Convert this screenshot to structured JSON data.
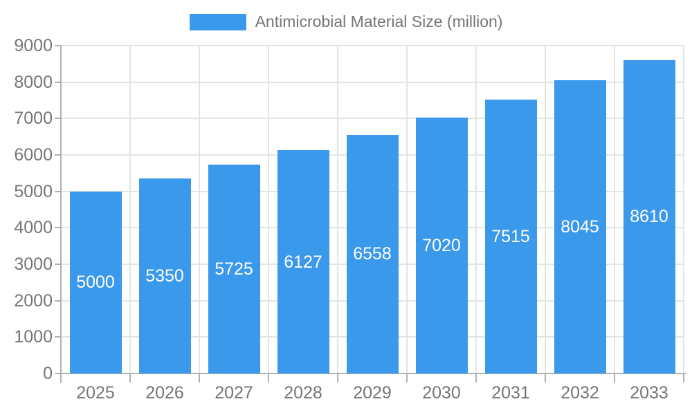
{
  "legend": {
    "label": "Antimicrobial Material Size (million)"
  },
  "colors": {
    "bar": "#3B99EC",
    "bar_label": "#FFFFFF",
    "grid": "#E4E4E4",
    "axis": "#B0B0B0",
    "tick_label": "#757575",
    "legend_text": "#757575",
    "background": "#FFFFFF"
  },
  "chart_data": {
    "type": "bar",
    "title": "Antimicrobial Material Size (million)",
    "categories": [
      "2025",
      "2026",
      "2027",
      "2028",
      "2029",
      "2030",
      "2031",
      "2032",
      "2033"
    ],
    "values": [
      5000,
      5350,
      5725,
      6127,
      6558,
      7020,
      7515,
      8045,
      8610
    ],
    "bar_value_labels": [
      "5000",
      "5350",
      "5725",
      "6127",
      "6558",
      "7020",
      "7515",
      "8045",
      "8610"
    ],
    "xlabel": "",
    "ylabel": "",
    "ylim": [
      0,
      9000
    ],
    "ytick_step": 1000,
    "ytick_labels": [
      "0",
      "1000",
      "2000",
      "3000",
      "4000",
      "5000",
      "6000",
      "7000",
      "8000",
      "9000"
    ],
    "grid": true,
    "legend_position": "top-center",
    "bar_labels_position": "inside-middle"
  }
}
